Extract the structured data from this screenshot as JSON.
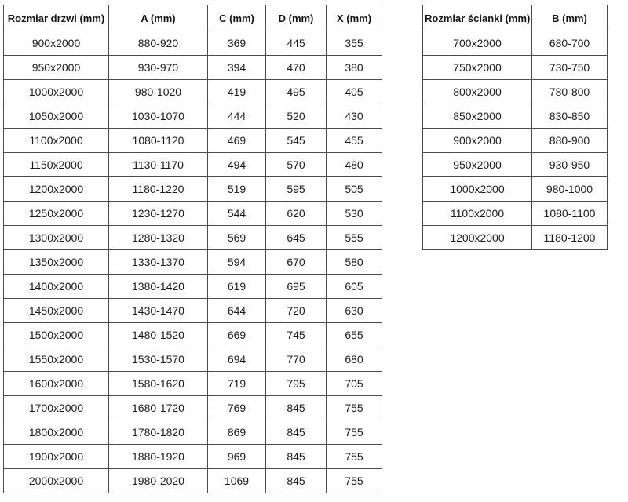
{
  "door_table": {
    "headers": [
      "Rozmiar drzwi (mm)",
      "A (mm)",
      "C (mm)",
      "D (mm)",
      "X (mm)"
    ],
    "rows": [
      [
        "900x2000",
        "880-920",
        "369",
        "445",
        "355"
      ],
      [
        "950x2000",
        "930-970",
        "394",
        "470",
        "380"
      ],
      [
        "1000x2000",
        "980-1020",
        "419",
        "495",
        "405"
      ],
      [
        "1050x2000",
        "1030-1070",
        "444",
        "520",
        "430"
      ],
      [
        "1100x2000",
        "1080-1120",
        "469",
        "545",
        "455"
      ],
      [
        "1150x2000",
        "1130-1170",
        "494",
        "570",
        "480"
      ],
      [
        "1200x2000",
        "1180-1220",
        "519",
        "595",
        "505"
      ],
      [
        "1250x2000",
        "1230-1270",
        "544",
        "620",
        "530"
      ],
      [
        "1300x2000",
        "1280-1320",
        "569",
        "645",
        "555"
      ],
      [
        "1350x2000",
        "1330-1370",
        "594",
        "670",
        "580"
      ],
      [
        "1400x2000",
        "1380-1420",
        "619",
        "695",
        "605"
      ],
      [
        "1450x2000",
        "1430-1470",
        "644",
        "720",
        "630"
      ],
      [
        "1500x2000",
        "1480-1520",
        "669",
        "745",
        "655"
      ],
      [
        "1550x2000",
        "1530-1570",
        "694",
        "770",
        "680"
      ],
      [
        "1600x2000",
        "1580-1620",
        "719",
        "795",
        "705"
      ],
      [
        "1700x2000",
        "1680-1720",
        "769",
        "845",
        "755"
      ],
      [
        "1800x2000",
        "1780-1820",
        "869",
        "845",
        "755"
      ],
      [
        "1900x2000",
        "1880-1920",
        "969",
        "845",
        "755"
      ],
      [
        "2000x2000",
        "1980-2020",
        "1069",
        "845",
        "755"
      ]
    ]
  },
  "wall_table": {
    "headers": [
      "Rozmiar ścianki (mm)",
      "B (mm)"
    ],
    "rows": [
      [
        "700x2000",
        "680-700"
      ],
      [
        "750x2000",
        "730-750"
      ],
      [
        "800x2000",
        "780-800"
      ],
      [
        "850x2000",
        "830-850"
      ],
      [
        "900x2000",
        "880-900"
      ],
      [
        "950x2000",
        "930-950"
      ],
      [
        "1000x2000",
        "980-1000"
      ],
      [
        "1100x2000",
        "1080-1100"
      ],
      [
        "1200x2000",
        "1180-1200"
      ]
    ]
  },
  "colors": {
    "border": "#4d4d4d",
    "text": "#1c1c1c",
    "background": "#ffffff"
  }
}
